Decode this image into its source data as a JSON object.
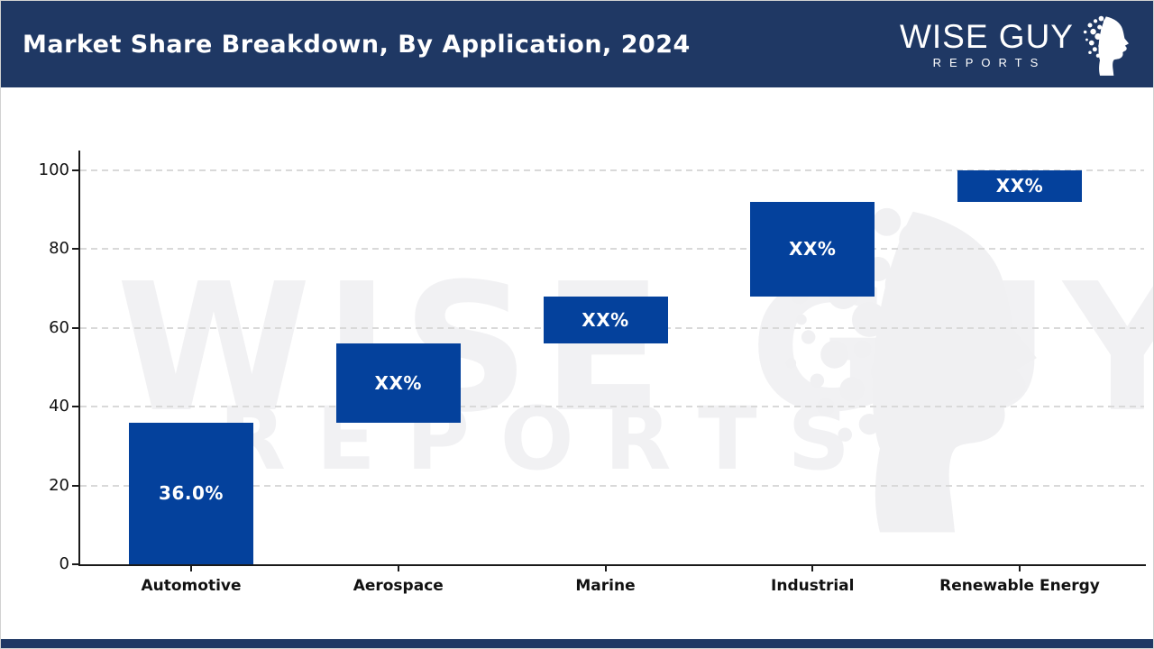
{
  "header": {
    "title": "Market Share Breakdown, By Application, 2024",
    "bg_color": "#1f3864",
    "logo": {
      "name": "WISE GUY",
      "subtitle": "REPORTS"
    }
  },
  "watermark": {
    "name": "WISE GUY",
    "subtitle": "REPORTS",
    "color": "#f1f1f3"
  },
  "chart_data": {
    "type": "bar",
    "subtype": "stepped-waterfall",
    "title": "Market Share Breakdown, By Application, 2024",
    "categories": [
      "Automotive",
      "Aerospace",
      "Marine",
      "Industrial",
      "Renewable Energy"
    ],
    "segments": [
      {
        "category": "Automotive",
        "start": 0,
        "end": 36,
        "value": 36,
        "label": "36.0%"
      },
      {
        "category": "Aerospace",
        "start": 36,
        "end": 56,
        "value": 20,
        "label": "XX%"
      },
      {
        "category": "Marine",
        "start": 56,
        "end": 68,
        "value": 12,
        "label": "XX%"
      },
      {
        "category": "Industrial",
        "start": 68,
        "end": 92,
        "value": 24,
        "label": "XX%"
      },
      {
        "category": "Renewable Energy",
        "start": 92,
        "end": 100,
        "value": 8,
        "label": "XX%"
      }
    ],
    "xlabel": "",
    "ylabel": "",
    "y_ticks": [
      0,
      20,
      40,
      60,
      80,
      100
    ],
    "ylim": [
      0,
      105
    ],
    "bar_color": "#04419c",
    "bar_label_color": "#ffffff",
    "grid": {
      "horizontal": true,
      "style": "dashed",
      "color": "#d9d9d9"
    },
    "legend": "none"
  },
  "colors": {
    "header_bg": "#1f3864",
    "footer_bg": "#1f3864",
    "axis": "#1a1a1a",
    "watermark": "#f1f1f3"
  }
}
